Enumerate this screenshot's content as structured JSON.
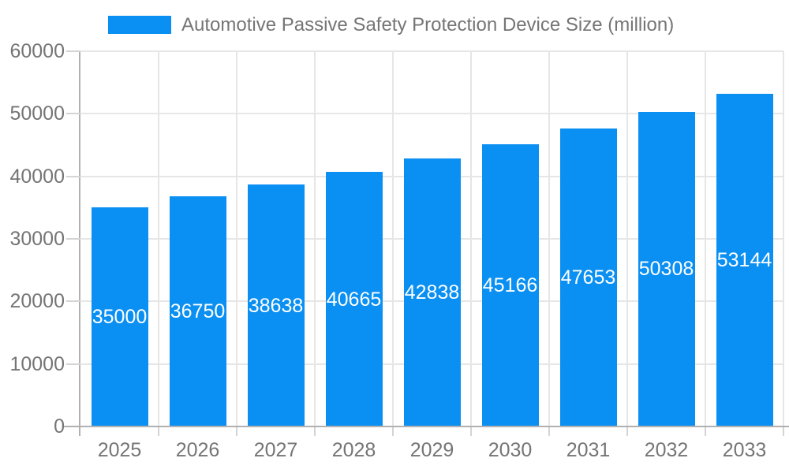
{
  "legend": {
    "label": "Automotive Passive Safety Protection Device Size (million)"
  },
  "chart_data": {
    "type": "bar",
    "title": "Automotive Passive Safety Protection Device Size (million)",
    "categories": [
      "2025",
      "2026",
      "2027",
      "2028",
      "2029",
      "2030",
      "2031",
      "2032",
      "2033"
    ],
    "values": [
      35000,
      36750,
      38638,
      40665,
      42838,
      45166,
      47653,
      50308,
      53144
    ],
    "xlabel": "",
    "ylabel": "",
    "ylim": [
      0,
      60000
    ],
    "yticks": [
      0,
      10000,
      20000,
      30000,
      40000,
      50000,
      60000
    ],
    "grid": true,
    "legend_position": "top",
    "value_labels": "inside-center",
    "colors": {
      "bar": "#0A8FF2",
      "grid": "#e6e6e6",
      "axis_line": "#b0b0b0",
      "tick": "#d4d4d4",
      "axis_text": "#757575",
      "value_label": "#ffffff",
      "background": "#ffffff"
    }
  }
}
